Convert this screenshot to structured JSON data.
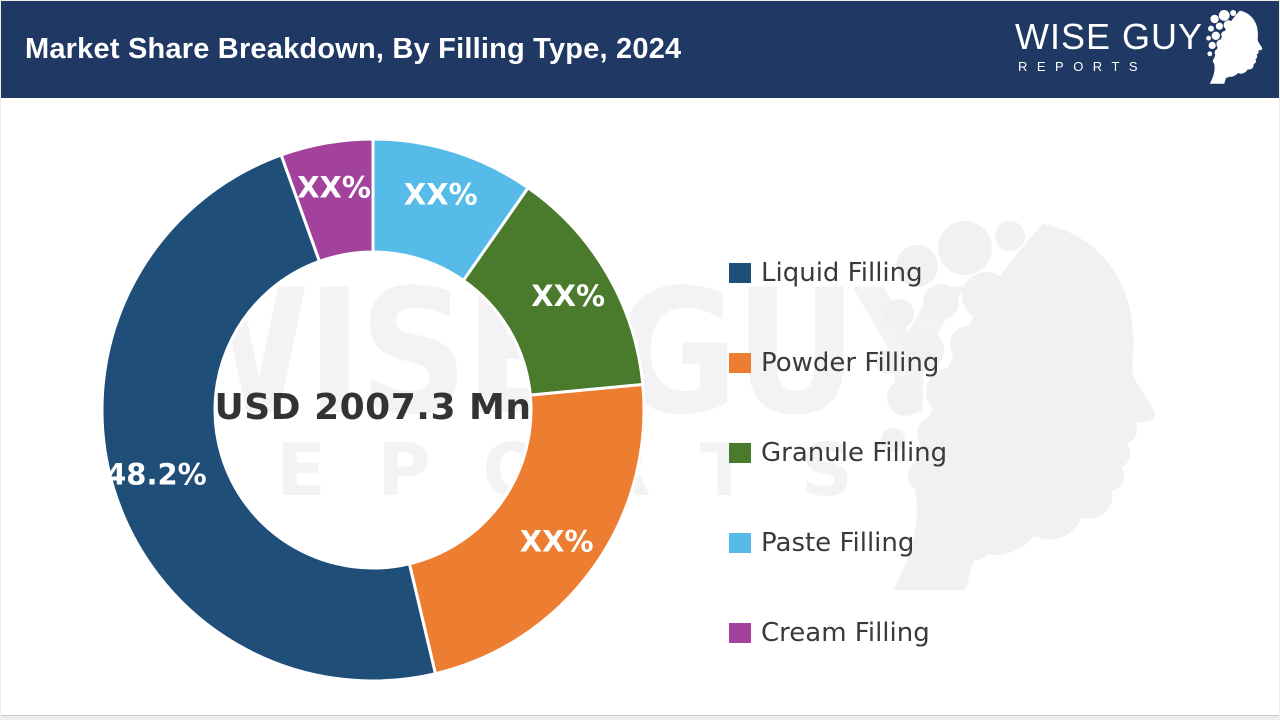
{
  "header": {
    "title": "Market Share Breakdown, By Filling Type, 2024",
    "logo": {
      "line1": "WISE GUY",
      "line2": "REPORTS"
    }
  },
  "watermark": {
    "line1": "WISE GUY",
    "line2": "REPORTS"
  },
  "chart_data": {
    "type": "pie",
    "subtype": "donut",
    "title": "Market Share Breakdown, By Filling Type, 2024",
    "center_label": "USD 2007.3 Mn",
    "legend_position": "right",
    "segments": [
      {
        "name": "Liquid Filling",
        "slice_label": "48.2%",
        "value_pct": 48.2,
        "color": "#1F4E79"
      },
      {
        "name": "Powder Filling",
        "slice_label": "XX%",
        "value_pct": 22.8,
        "color": "#ED7D31"
      },
      {
        "name": "Granule Filling",
        "slice_label": "XX%",
        "value_pct": 13.8,
        "color": "#4A7A2B"
      },
      {
        "name": "Paste Filling",
        "slice_label": "XX%",
        "value_pct": 9.7,
        "color": "#56BBE8"
      },
      {
        "name": "Cream Filling",
        "slice_label": "XX%",
        "value_pct": 5.5,
        "color": "#A3429D"
      }
    ],
    "draw_order_clockwise_from_top": [
      "Paste Filling",
      "Granule Filling",
      "Powder Filling",
      "Liquid Filling",
      "Cream Filling"
    ]
  }
}
